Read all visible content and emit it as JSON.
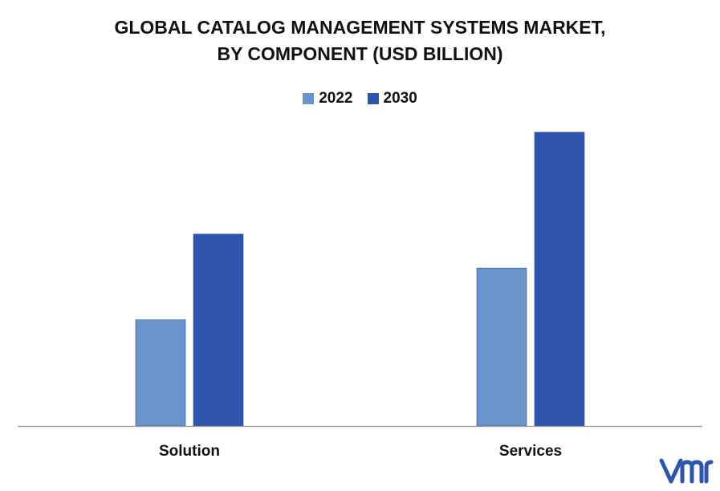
{
  "chart_data": {
    "type": "bar",
    "title_line1": "GLOBAL CATALOG MANAGEMENT SYSTEMS MARKET,",
    "title_line2": "BY COMPONENT (USD BILLION)",
    "categories": [
      "Solution",
      "Services"
    ],
    "series": [
      {
        "name": "2022",
        "color": "#6a95cc",
        "values": [
          1.25,
          1.86
        ]
      },
      {
        "name": "2030",
        "color": "#2e55ad",
        "values": [
          2.26,
          3.46
        ]
      }
    ],
    "ylim": [
      0,
      3.6
    ],
    "grid": false,
    "legend_position": "top-center",
    "xlabel": "",
    "ylabel": ""
  },
  "logo": {
    "icon": "vmr-logo-icon",
    "color": "#2e55ad"
  }
}
